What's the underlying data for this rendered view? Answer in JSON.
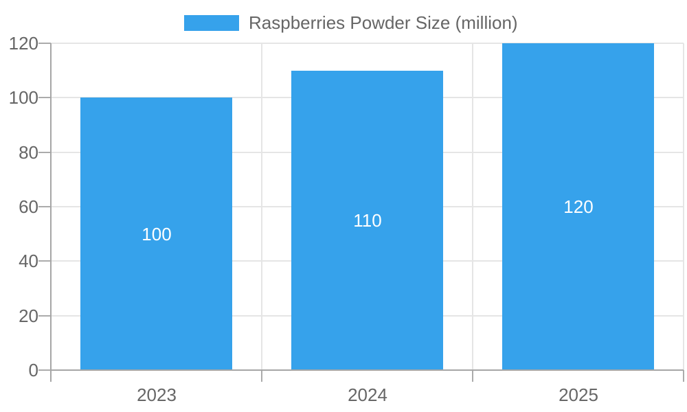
{
  "chart_data": {
    "type": "bar",
    "title": "",
    "legend": "Raspberries Powder Size (million)",
    "legend_position": "top",
    "categories": [
      "2023",
      "2024",
      "2025"
    ],
    "series": [
      {
        "name": "Raspberries Powder Size (million)",
        "values": [
          100,
          110,
          120
        ]
      }
    ],
    "data_labels": [
      "100",
      "110",
      "120"
    ],
    "xlabel": "",
    "ylabel": "",
    "ylim": [
      0,
      120
    ],
    "yticks": [
      0,
      20,
      40,
      60,
      80,
      100,
      120
    ],
    "grid": "on",
    "colors": {
      "bar": "#36A2EB",
      "bar_label_text": "#ffffff",
      "axis_text": "#666666",
      "grid_line": "#e5e5e5",
      "axis_line": "#a6a6a6",
      "tick_mark": "#ababab",
      "background": "#ffffff"
    }
  }
}
